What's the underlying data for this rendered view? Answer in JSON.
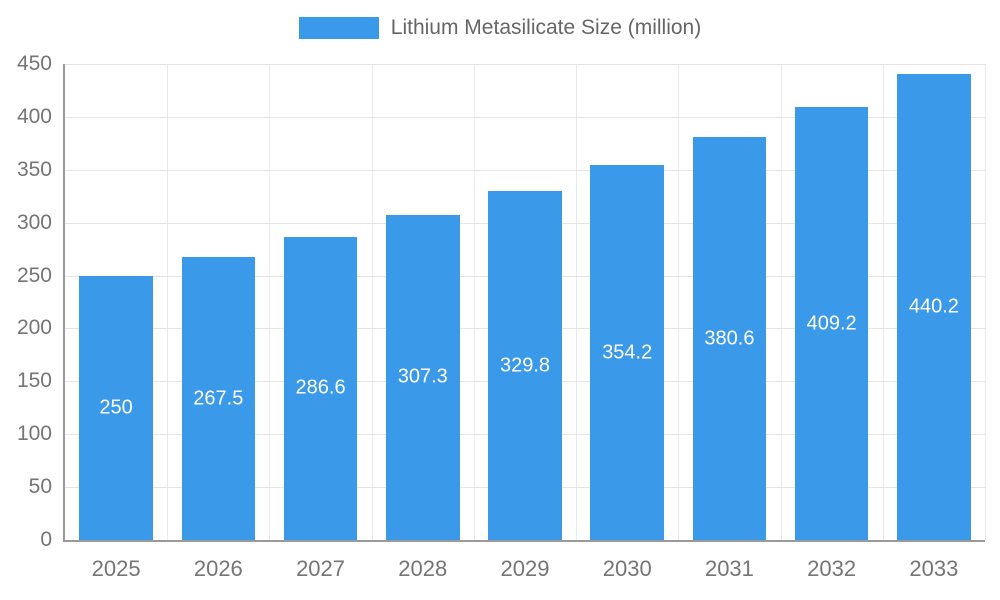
{
  "chart_data": {
    "type": "bar",
    "title": "",
    "legend": "Lithium Metasilicate Size (million)",
    "legend_position": "top",
    "categories": [
      "2025",
      "2026",
      "2027",
      "2028",
      "2029",
      "2030",
      "2031",
      "2032",
      "2033"
    ],
    "values": [
      250,
      267.5,
      286.6,
      307.3,
      329.8,
      354.2,
      380.6,
      409.2,
      440.2
    ],
    "value_labels": [
      "250",
      "267.5",
      "286.6",
      "307.3",
      "329.8",
      "354.2",
      "380.6",
      "409.2",
      "440.2"
    ],
    "xlabel": "",
    "ylabel": "",
    "ylim": [
      0,
      450
    ],
    "ytick_step": 50,
    "grid": true,
    "value_label_position": "inside-center",
    "colors": {
      "bar": "#3a99e8",
      "value_label_text": "#ffffff",
      "axis_text": "#757575",
      "legend_text": "#666666",
      "gridline": "#e4e4e4",
      "axis_line": "#9a9a9a",
      "background": "#ffffff"
    }
  }
}
